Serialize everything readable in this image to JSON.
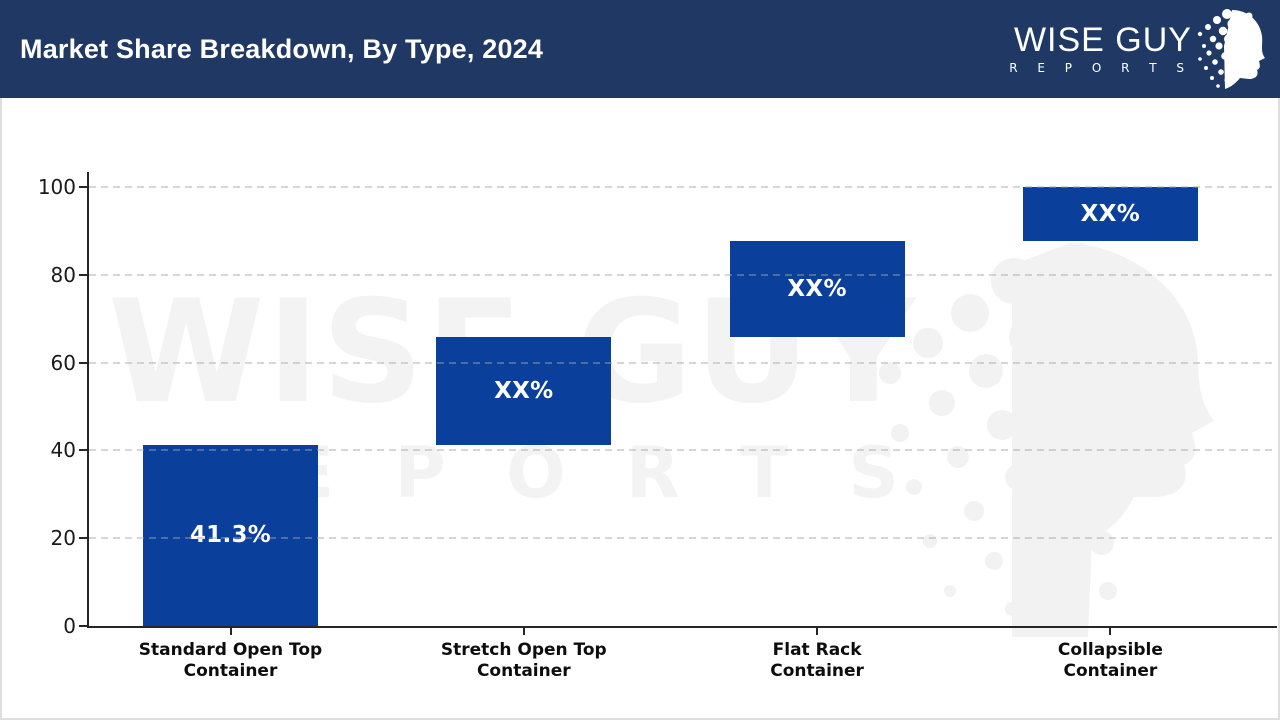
{
  "header": {
    "title": "Market Share Breakdown, By Type, 2024",
    "logo": {
      "name": "WISE GUY",
      "sub": "R E P O R T S",
      "head_icon": "dotted-face-icon"
    }
  },
  "watermark": {
    "big": "WISE GUY",
    "sub": "R E P O R T S",
    "face_icon": "dotted-face-watermark-icon"
  },
  "chart_data": {
    "type": "bar",
    "subtype": "floating-waterfall-segments",
    "title": "Market Share Breakdown, By Type, 2024",
    "categories": [
      "Standard Open Top Container",
      "Stretch Open Top Container",
      "Flat Rack Container",
      "Collapsible Container"
    ],
    "category_lines": [
      [
        "Standard Open Top",
        "Container"
      ],
      [
        "Stretch Open Top",
        "Container"
      ],
      [
        "Flat Rack",
        "Container"
      ],
      [
        "Collapsible",
        "Container"
      ]
    ],
    "segments": [
      {
        "category": "Standard Open Top Container",
        "start": 0,
        "end": 41.3,
        "label": "41.3%"
      },
      {
        "category": "Stretch Open Top Container",
        "start": 41.3,
        "end": 65.8,
        "label": "XX%"
      },
      {
        "category": "Flat Rack Container",
        "start": 65.8,
        "end": 87.6,
        "label": "XX%"
      },
      {
        "category": "Collapsible Container",
        "start": 87.6,
        "end": 100,
        "label": "XX%"
      }
    ],
    "yticks": [
      0,
      20,
      40,
      60,
      80,
      100
    ],
    "ylim": [
      0,
      103
    ],
    "xlabel": "",
    "ylabel": "",
    "grid": "horizontal-dashed",
    "legend": "none",
    "bar_color": "#0a3f9b",
    "bar_label_color": "#ffffff"
  },
  "colors": {
    "header_bg": "#203864",
    "axis": "#262626",
    "tick_label": "#1a1a1a",
    "gridline": "#dcdcdc",
    "watermark": "#f3f3f3",
    "frame_border": "#dedede"
  }
}
